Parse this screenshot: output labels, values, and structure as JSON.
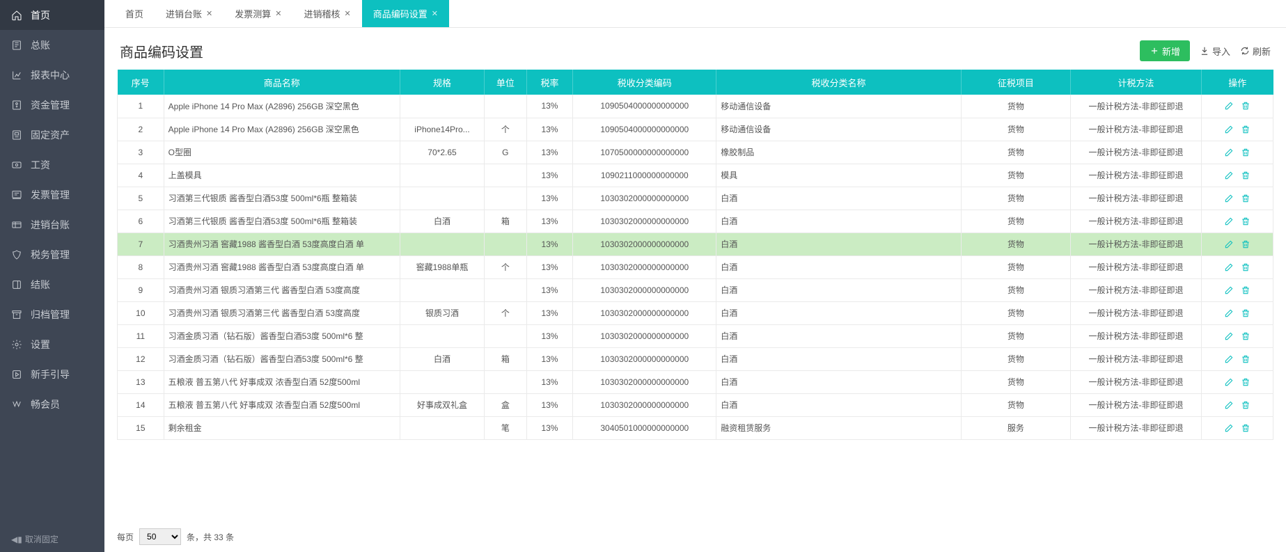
{
  "sidebar": {
    "items": [
      {
        "label": "首页",
        "icon": "home"
      },
      {
        "label": "总账",
        "icon": "ledger"
      },
      {
        "label": "报表中心",
        "icon": "chart"
      },
      {
        "label": "资金管理",
        "icon": "money"
      },
      {
        "label": "固定资产",
        "icon": "asset"
      },
      {
        "label": "工资",
        "icon": "salary"
      },
      {
        "label": "发票管理",
        "icon": "invoice"
      },
      {
        "label": "进销台账",
        "icon": "inventory"
      },
      {
        "label": "税务管理",
        "icon": "tax"
      },
      {
        "label": "结账",
        "icon": "close-book"
      },
      {
        "label": "归档管理",
        "icon": "archive"
      },
      {
        "label": "设置",
        "icon": "gear"
      },
      {
        "label": "新手引导",
        "icon": "guide"
      },
      {
        "label": "畅会员",
        "icon": "vip"
      }
    ],
    "footer": "取消固定"
  },
  "tabs": {
    "items": [
      {
        "label": "首页",
        "closable": false,
        "active": false
      },
      {
        "label": "进销台账",
        "closable": true,
        "active": false
      },
      {
        "label": "发票测算",
        "closable": true,
        "active": false
      },
      {
        "label": "进销稽核",
        "closable": true,
        "active": false
      },
      {
        "label": "商品编码设置",
        "closable": true,
        "active": true
      }
    ]
  },
  "page": {
    "title": "商品编码设置",
    "add_btn": "新增",
    "import_btn": "导入",
    "refresh_btn": "刷新"
  },
  "table": {
    "columns": [
      {
        "key": "seq",
        "label": "序号",
        "class": "col-seq",
        "align": "center"
      },
      {
        "key": "name",
        "label": "商品名称",
        "class": "col-name",
        "align": "left"
      },
      {
        "key": "spec",
        "label": "规格",
        "class": "col-spec",
        "align": "center"
      },
      {
        "key": "unit",
        "label": "单位",
        "class": "col-unit",
        "align": "center"
      },
      {
        "key": "rate",
        "label": "税率",
        "class": "col-rate",
        "align": "center"
      },
      {
        "key": "code",
        "label": "税收分类编码",
        "class": "col-code",
        "align": "center"
      },
      {
        "key": "cat",
        "label": "税收分类名称",
        "class": "col-cat",
        "align": "left"
      },
      {
        "key": "item",
        "label": "征税项目",
        "class": "col-item",
        "align": "center"
      },
      {
        "key": "method",
        "label": "计税方法",
        "class": "col-method",
        "align": "center"
      },
      {
        "key": "op",
        "label": "操作",
        "class": "col-op",
        "align": "center"
      }
    ],
    "rows": [
      {
        "seq": "1",
        "name": "Apple iPhone 14 Pro Max (A2896) 256GB 深空黑色",
        "spec": "",
        "unit": "",
        "rate": "13%",
        "code": "1090504000000000000",
        "cat": "移动通信设备",
        "item": "货物",
        "method": "一般计税方法-非即征即退",
        "highlight": false
      },
      {
        "seq": "2",
        "name": "Apple iPhone 14 Pro Max (A2896) 256GB 深空黑色",
        "spec": "iPhone14Pro...",
        "unit": "个",
        "rate": "13%",
        "code": "1090504000000000000",
        "cat": "移动通信设备",
        "item": "货物",
        "method": "一般计税方法-非即征即退",
        "highlight": false
      },
      {
        "seq": "3",
        "name": "O型圈",
        "spec": "70*2.65",
        "unit": "G",
        "rate": "13%",
        "code": "1070500000000000000",
        "cat": "橡胶制品",
        "item": "货物",
        "method": "一般计税方法-非即征即退",
        "highlight": false
      },
      {
        "seq": "4",
        "name": "上盖模具",
        "spec": "",
        "unit": "",
        "rate": "13%",
        "code": "1090211000000000000",
        "cat": "模具",
        "item": "货物",
        "method": "一般计税方法-非即征即退",
        "highlight": false
      },
      {
        "seq": "5",
        "name": "习酒第三代银质 酱香型白酒53度 500ml*6瓶 整箱装",
        "spec": "",
        "unit": "",
        "rate": "13%",
        "code": "1030302000000000000",
        "cat": "白酒",
        "item": "货物",
        "method": "一般计税方法-非即征即退",
        "highlight": false
      },
      {
        "seq": "6",
        "name": "习酒第三代银质 酱香型白酒53度 500ml*6瓶 整箱装",
        "spec": "白酒",
        "unit": "箱",
        "rate": "13%",
        "code": "1030302000000000000",
        "cat": "白酒",
        "item": "货物",
        "method": "一般计税方法-非即征即退",
        "highlight": false
      },
      {
        "seq": "7",
        "name": "习酒贵州习酒 窖藏1988 酱香型白酒 53度高度白酒 单",
        "spec": "",
        "unit": "",
        "rate": "13%",
        "code": "1030302000000000000",
        "cat": "白酒",
        "item": "货物",
        "method": "一般计税方法-非即征即退",
        "highlight": true
      },
      {
        "seq": "8",
        "name": "习酒贵州习酒 窖藏1988 酱香型白酒 53度高度白酒 单",
        "spec": "窖藏1988单瓶",
        "unit": "个",
        "rate": "13%",
        "code": "1030302000000000000",
        "cat": "白酒",
        "item": "货物",
        "method": "一般计税方法-非即征即退",
        "highlight": false
      },
      {
        "seq": "9",
        "name": "习酒贵州习酒 银质习酒第三代 酱香型白酒 53度高度",
        "spec": "",
        "unit": "",
        "rate": "13%",
        "code": "1030302000000000000",
        "cat": "白酒",
        "item": "货物",
        "method": "一般计税方法-非即征即退",
        "highlight": false
      },
      {
        "seq": "10",
        "name": "习酒贵州习酒 银质习酒第三代 酱香型白酒 53度高度",
        "spec": "银质习酒",
        "unit": "个",
        "rate": "13%",
        "code": "1030302000000000000",
        "cat": "白酒",
        "item": "货物",
        "method": "一般计税方法-非即征即退",
        "highlight": false
      },
      {
        "seq": "11",
        "name": "习酒金质习酒（钻石版）酱香型白酒53度 500ml*6 整",
        "spec": "",
        "unit": "",
        "rate": "13%",
        "code": "1030302000000000000",
        "cat": "白酒",
        "item": "货物",
        "method": "一般计税方法-非即征即退",
        "highlight": false
      },
      {
        "seq": "12",
        "name": "习酒金质习酒（钻石版）酱香型白酒53度 500ml*6 整",
        "spec": "白酒",
        "unit": "箱",
        "rate": "13%",
        "code": "1030302000000000000",
        "cat": "白酒",
        "item": "货物",
        "method": "一般计税方法-非即征即退",
        "highlight": false
      },
      {
        "seq": "13",
        "name": "五粮液 普五第八代 好事成双 浓香型白酒 52度500ml",
        "spec": "",
        "unit": "",
        "rate": "13%",
        "code": "1030302000000000000",
        "cat": "白酒",
        "item": "货物",
        "method": "一般计税方法-非即征即退",
        "highlight": false
      },
      {
        "seq": "14",
        "name": "五粮液 普五第八代 好事成双 浓香型白酒 52度500ml",
        "spec": "好事成双礼盒",
        "unit": "盒",
        "rate": "13%",
        "code": "1030302000000000000",
        "cat": "白酒",
        "item": "货物",
        "method": "一般计税方法-非即征即退",
        "highlight": false
      },
      {
        "seq": "15",
        "name": "剩余租金",
        "spec": "",
        "unit": "笔",
        "rate": "13%",
        "code": "3040501000000000000",
        "cat": "融资租赁服务",
        "item": "服务",
        "method": "一般计税方法-非即征即退",
        "highlight": false
      }
    ]
  },
  "pagination": {
    "per_page_label": "每页",
    "page_size": "50",
    "of_label": "条，共",
    "total": "33",
    "unit": "条"
  }
}
